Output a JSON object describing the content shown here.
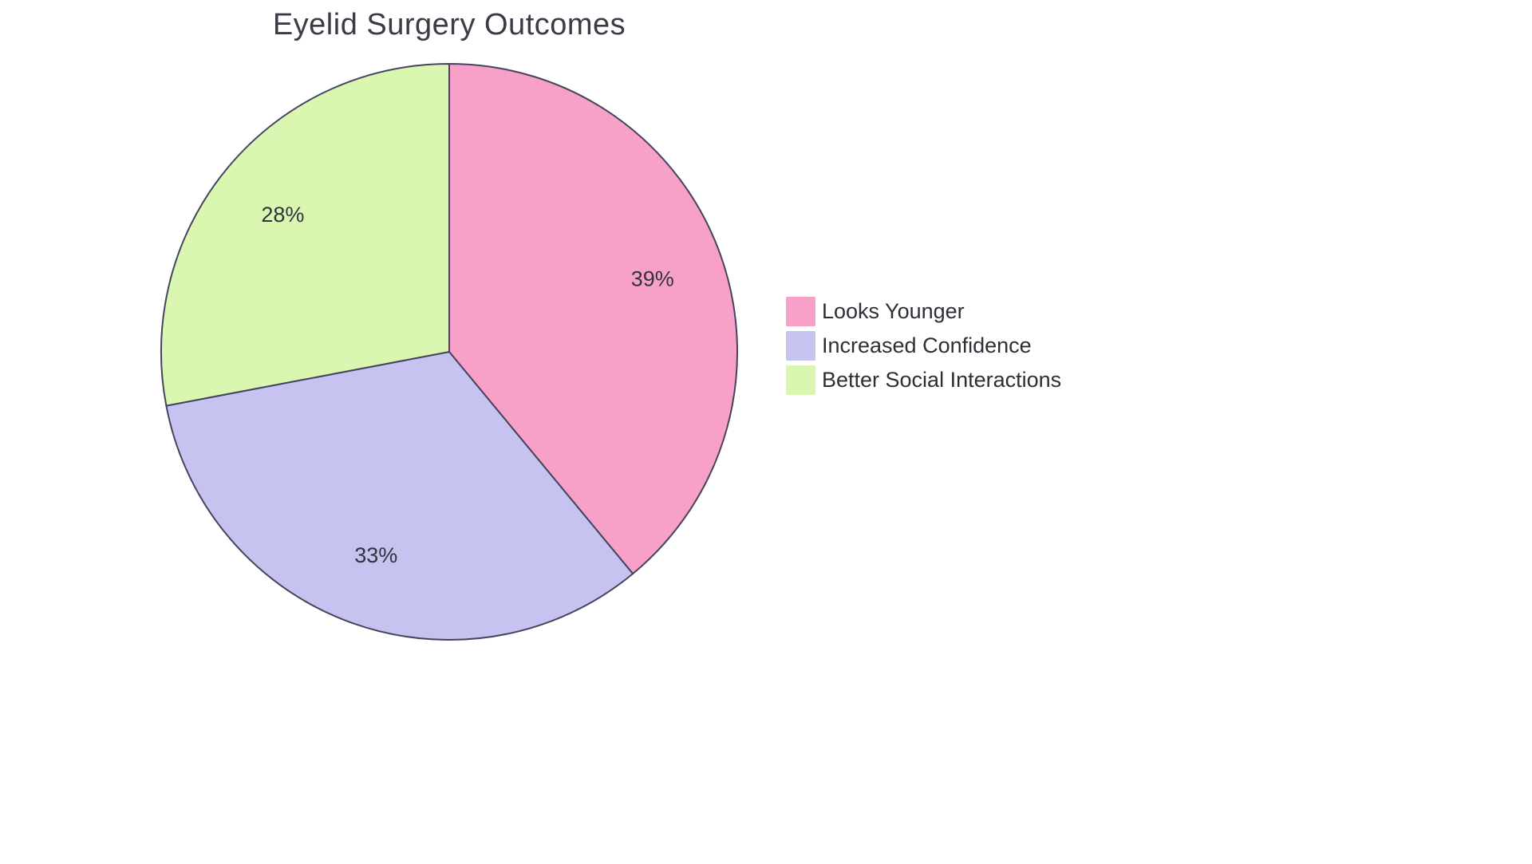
{
  "page": {
    "background_color": "#FFFFFF"
  },
  "chart_data": {
    "type": "pie",
    "title": "Eyelid Surgery Outcomes",
    "labels": [
      "Looks Younger",
      "Increased Confidence",
      "Better Social Interactions"
    ],
    "values": [
      39,
      33,
      28
    ],
    "value_labels": [
      "39%",
      "33%",
      "28%"
    ],
    "colors": [
      "#F8A1C8",
      "#C6C3F0",
      "#D9F7B0"
    ],
    "stroke_color": "#46435F",
    "stroke_width": 2,
    "start_angle_deg": 0,
    "direction": "clockwise",
    "legend_position": "right",
    "label_color": "#33323E",
    "title_color": "#3B3B47"
  }
}
